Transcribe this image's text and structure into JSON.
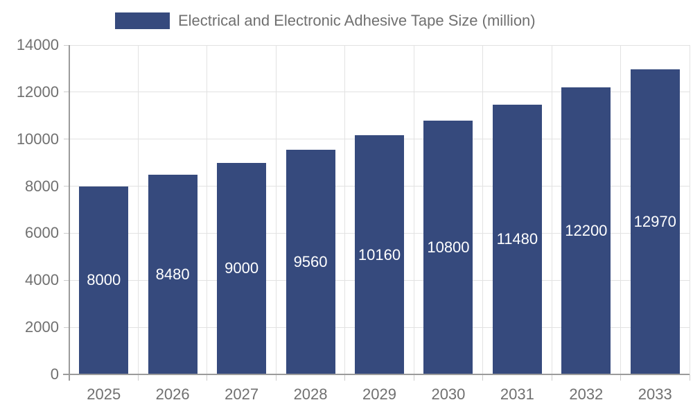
{
  "legend": {
    "label": "Electrical and Electronic Adhesive Tape Size (million)"
  },
  "chart_data": {
    "type": "bar",
    "title": "Electrical and Electronic Adhesive Tape Size (million)",
    "categories": [
      "2025",
      "2026",
      "2027",
      "2028",
      "2029",
      "2030",
      "2031",
      "2032",
      "2033"
    ],
    "values": [
      8000,
      8480,
      9000,
      9560,
      10160,
      10800,
      11480,
      12200,
      12970
    ],
    "xlabel": "",
    "ylabel": "",
    "ylim": [
      0,
      14000
    ],
    "y_ticks": [
      0,
      2000,
      4000,
      6000,
      8000,
      10000,
      12000,
      14000
    ],
    "grid": true,
    "legend_position": "top",
    "bar_label_position": "inside-center"
  },
  "colors": {
    "bar": "#364A7D",
    "grid_line": "#e2e2e2",
    "axis_line": "#9b9b9b",
    "tick_line": "#cccccc",
    "axis_text": "#707070",
    "bar_label_text": "#ffffff",
    "background": "#ffffff"
  }
}
